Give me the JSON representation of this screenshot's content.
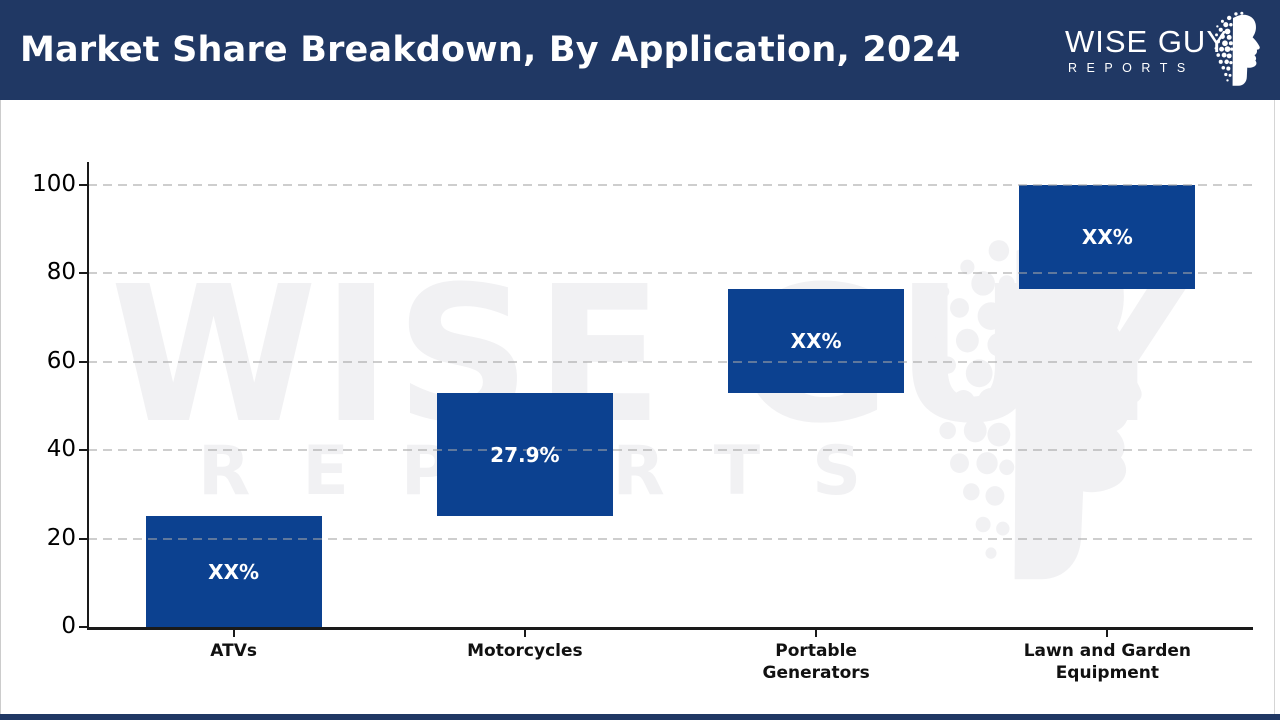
{
  "header": {
    "title": "Market Share Breakdown, By Application, 2024",
    "logo": {
      "name": "WISE GUY",
      "sub": "REPORTS"
    }
  },
  "watermark": {
    "text": "WISE GUY",
    "sub": "REPORTS"
  },
  "chart_data": {
    "type": "bar",
    "subtype": "floating-segment-waterfall",
    "title": "Market Share Breakdown, By Application, 2024",
    "categories": [
      "ATVs",
      "Motorcycles",
      "Portable\nGenerators",
      "Lawn and Garden\nEquipment"
    ],
    "segments": [
      {
        "category": "ATVs",
        "start": 0,
        "end": 25,
        "label": "XX%"
      },
      {
        "category": "Motorcycles",
        "start": 25,
        "end": 52.9,
        "label": "27.9%"
      },
      {
        "category": "Portable Generators",
        "start": 52.9,
        "end": 76.4,
        "label": "XX%"
      },
      {
        "category": "Lawn and Garden Equipment",
        "start": 76.4,
        "end": 100,
        "label": "XX%"
      }
    ],
    "xlabel": "",
    "ylabel": "",
    "ylim": [
      0,
      100
    ],
    "yticks": [
      0,
      20,
      40,
      60,
      80,
      100
    ],
    "grid": "horizontal-dashed",
    "legend": "none",
    "colors": {
      "bar": "#0c4190",
      "header_bg": "#203864",
      "grid": "#c9c9c9",
      "axis": "#1a1a1a",
      "bar_label": "#ffffff",
      "watermark": "#f1f1f3"
    }
  }
}
